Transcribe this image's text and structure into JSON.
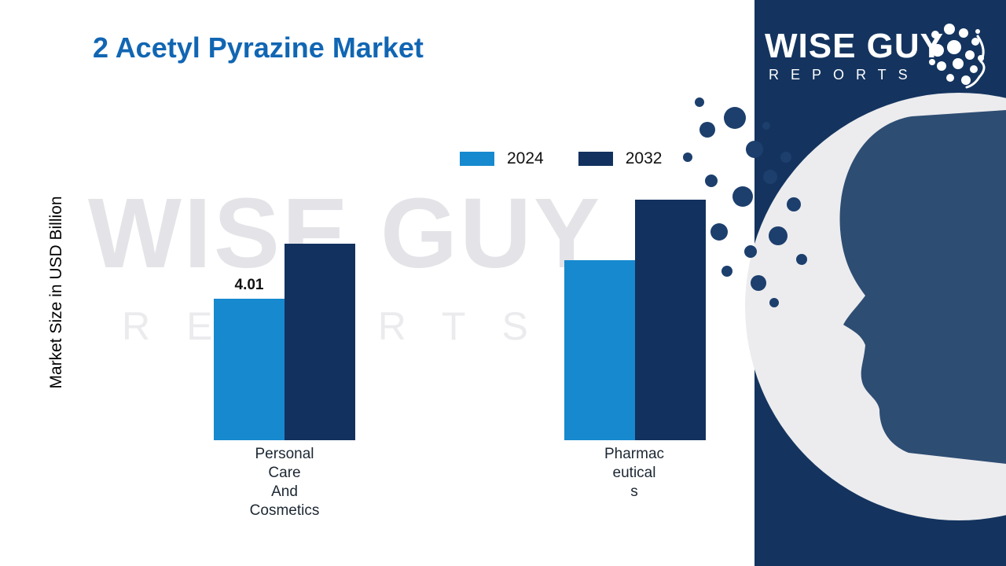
{
  "page": {
    "title": "2 Acetyl Pyrazine Market"
  },
  "watermark": {
    "line1": "WISE GUY",
    "line2": "REPORTS"
  },
  "logo": {
    "brand": "WISE GUY",
    "sub": "REPORTS"
  },
  "colors": {
    "accent_blue": "#1789cf",
    "navy": "#12315f",
    "panel_navy": "#14345f",
    "title_blue": "#1166b3"
  },
  "chart_data": {
    "type": "bar",
    "title": "2 Acetyl Pyrazine Market",
    "xlabel": "",
    "ylabel": "Market Size in USD Billion",
    "categories": [
      "Personal Care And Cosmetics",
      "Pharmaceuticals"
    ],
    "category_display": [
      "Personal\nCare\nAnd\nCosmetics",
      "Pharmac\neutical\ns"
    ],
    "series": [
      {
        "name": "2024",
        "color": "#1789cf",
        "values": [
          4.01,
          5.1
        ]
      },
      {
        "name": "2032",
        "color": "#12315f",
        "values": [
          5.55,
          6.8
        ]
      }
    ],
    "value_labels": [
      {
        "series": "2024",
        "category": "Personal Care And Cosmetics",
        "text": "4.01"
      }
    ],
    "ylim": [
      0,
      7
    ],
    "grid": false,
    "legend_position": "top"
  }
}
